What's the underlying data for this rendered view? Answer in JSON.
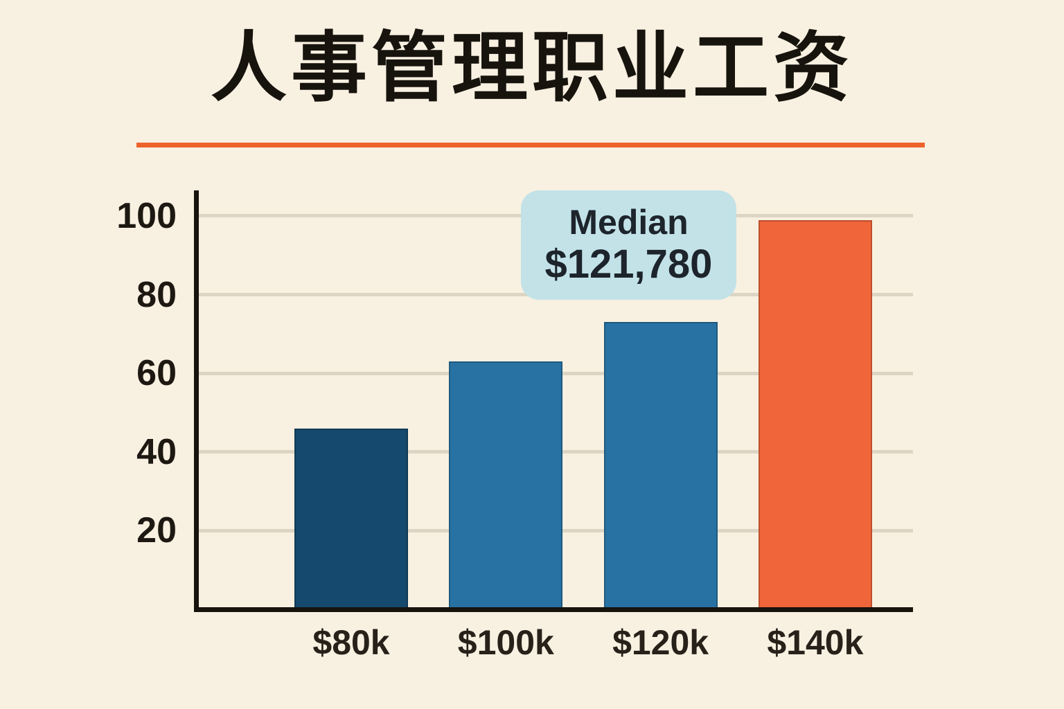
{
  "page": {
    "background_color": "#f8f0e1",
    "accent_color": "#ee622c",
    "text_color": "#17130d"
  },
  "header": {
    "title": "人事管理职业工资"
  },
  "chart_data": {
    "type": "bar",
    "title": "人事管理职业工资",
    "categories": [
      "$80k",
      "$100k",
      "$120k",
      "$140k"
    ],
    "values": [
      46,
      63,
      73,
      99
    ],
    "bar_colors": [
      "#15496d",
      "#2872a3",
      "#2872a3",
      "#f0653a"
    ],
    "xlabel": "",
    "ylabel": "",
    "yticks": [
      20,
      40,
      60,
      80,
      100
    ],
    "ylim": [
      0,
      106.5
    ],
    "grid": true,
    "legend": "none",
    "gridline_color": "#dcd5c4",
    "axis_color": "#17130d",
    "annotation": {
      "label": "Median",
      "value": "$121,780",
      "bg_color": "#c2e2e8",
      "text_color": "#1d242b"
    }
  }
}
